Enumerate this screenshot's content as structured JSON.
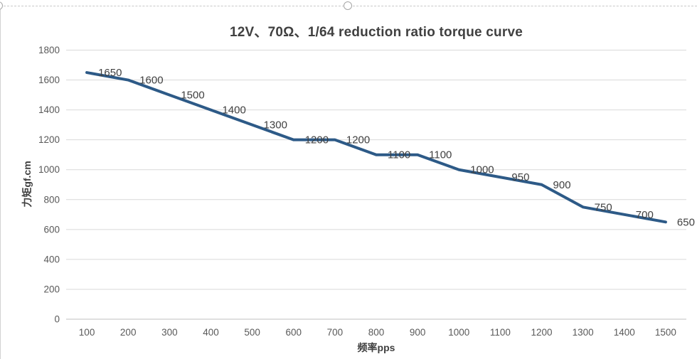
{
  "chart_data": {
    "type": "line",
    "title": "12V、70Ω、1/64 reduction ratio torque curve",
    "xlabel": "频率pps",
    "ylabel": "力矩gf.cm",
    "categories": [
      100,
      200,
      300,
      400,
      500,
      600,
      700,
      800,
      900,
      1000,
      1100,
      1200,
      1300,
      1400,
      1500
    ],
    "values": [
      1650,
      1600,
      1500,
      1400,
      1300,
      1200,
      1200,
      1100,
      1100,
      1000,
      950,
      900,
      750,
      700,
      650
    ],
    "data_labels": [
      "1650",
      "1600",
      "1500",
      "1400",
      "1300",
      "1200",
      "1200",
      "1100",
      "1100",
      "1000",
      "950",
      "900",
      "750",
      "700",
      "650"
    ],
    "ylim": [
      0,
      1800
    ],
    "ytick_step": 200,
    "grid": true,
    "legend_position": "none",
    "colors": {
      "series_line": "#2D5A87",
      "gridline": "#D9D9D9",
      "axis_line": "#BFBFBF",
      "tick_text": "#595959",
      "label_text": "#404040",
      "title_text": "#404040"
    }
  },
  "selection": {
    "state": "chart-object-selected"
  }
}
